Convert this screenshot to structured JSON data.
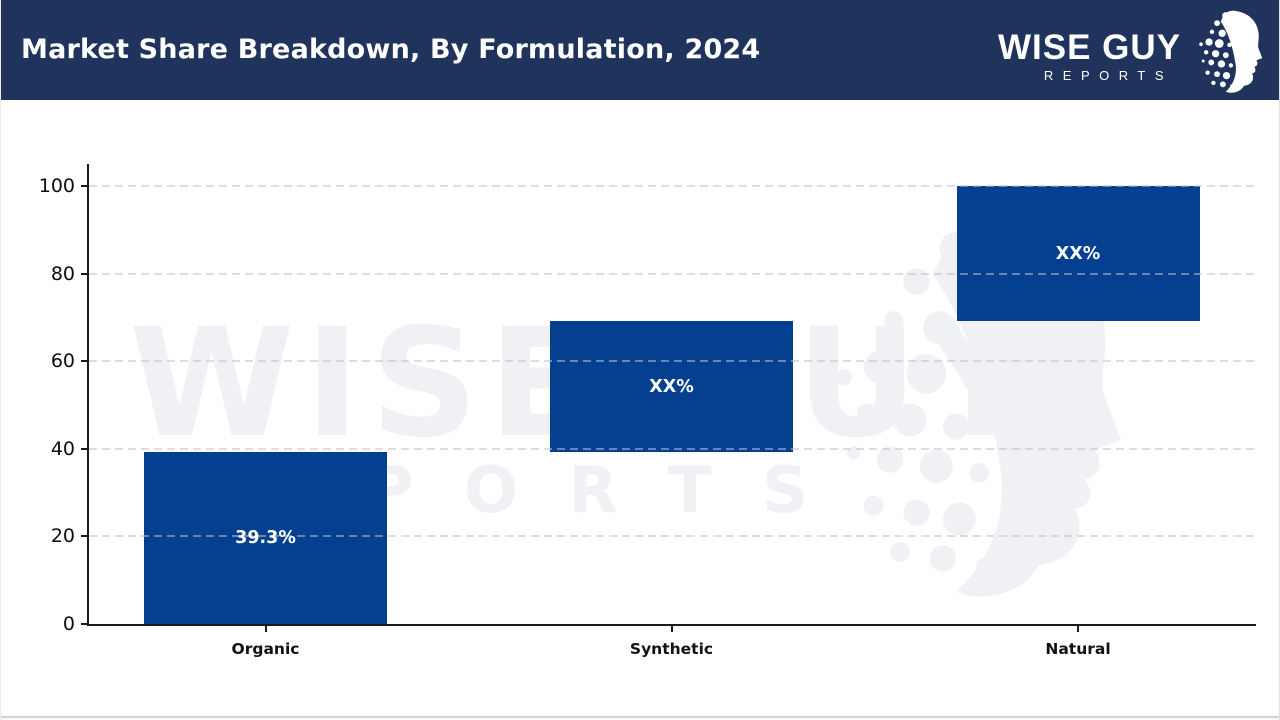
{
  "header": {
    "title": "Market Share Breakdown, By Formulation, 2024",
    "brand": {
      "wordmark_line1": "WISE GUY",
      "wordmark_line2": "REPORTS"
    }
  },
  "watermark": {
    "line1": "WISE GUY",
    "line2": "R E P O R T S"
  },
  "colors": {
    "header_bg": "#20335d",
    "bar_fill": "#04408f",
    "bar_label_text": "#ffffff",
    "axis": "#1a1a1a",
    "grid": "rgba(188,193,204,0.55)",
    "watermark_fill": "#f0f1f4",
    "title_text": "#ffffff",
    "tick_text": "#0d0d0d"
  },
  "chart_data": {
    "type": "bar",
    "subtype": "waterfall-segmented",
    "title": "Market Share Breakdown, By Formulation, 2024",
    "categories": [
      "Organic",
      "Synthetic",
      "Natural"
    ],
    "segments": [
      {
        "category": "Organic",
        "base": 0,
        "top": 39.3,
        "value": 39.3,
        "label": "39.3%"
      },
      {
        "category": "Synthetic",
        "base": 39.3,
        "top": 69.1,
        "value": 29.8,
        "label": "XX%"
      },
      {
        "category": "Natural",
        "base": 69.1,
        "top": 100,
        "value": 30.9,
        "label": "XX%"
      }
    ],
    "yticks": [
      0,
      20,
      40,
      60,
      80,
      100
    ],
    "ylim": [
      0,
      105
    ],
    "xlabel": "",
    "ylabel": "",
    "grid": "horizontal-dashed-over-bars",
    "legend": "none"
  }
}
